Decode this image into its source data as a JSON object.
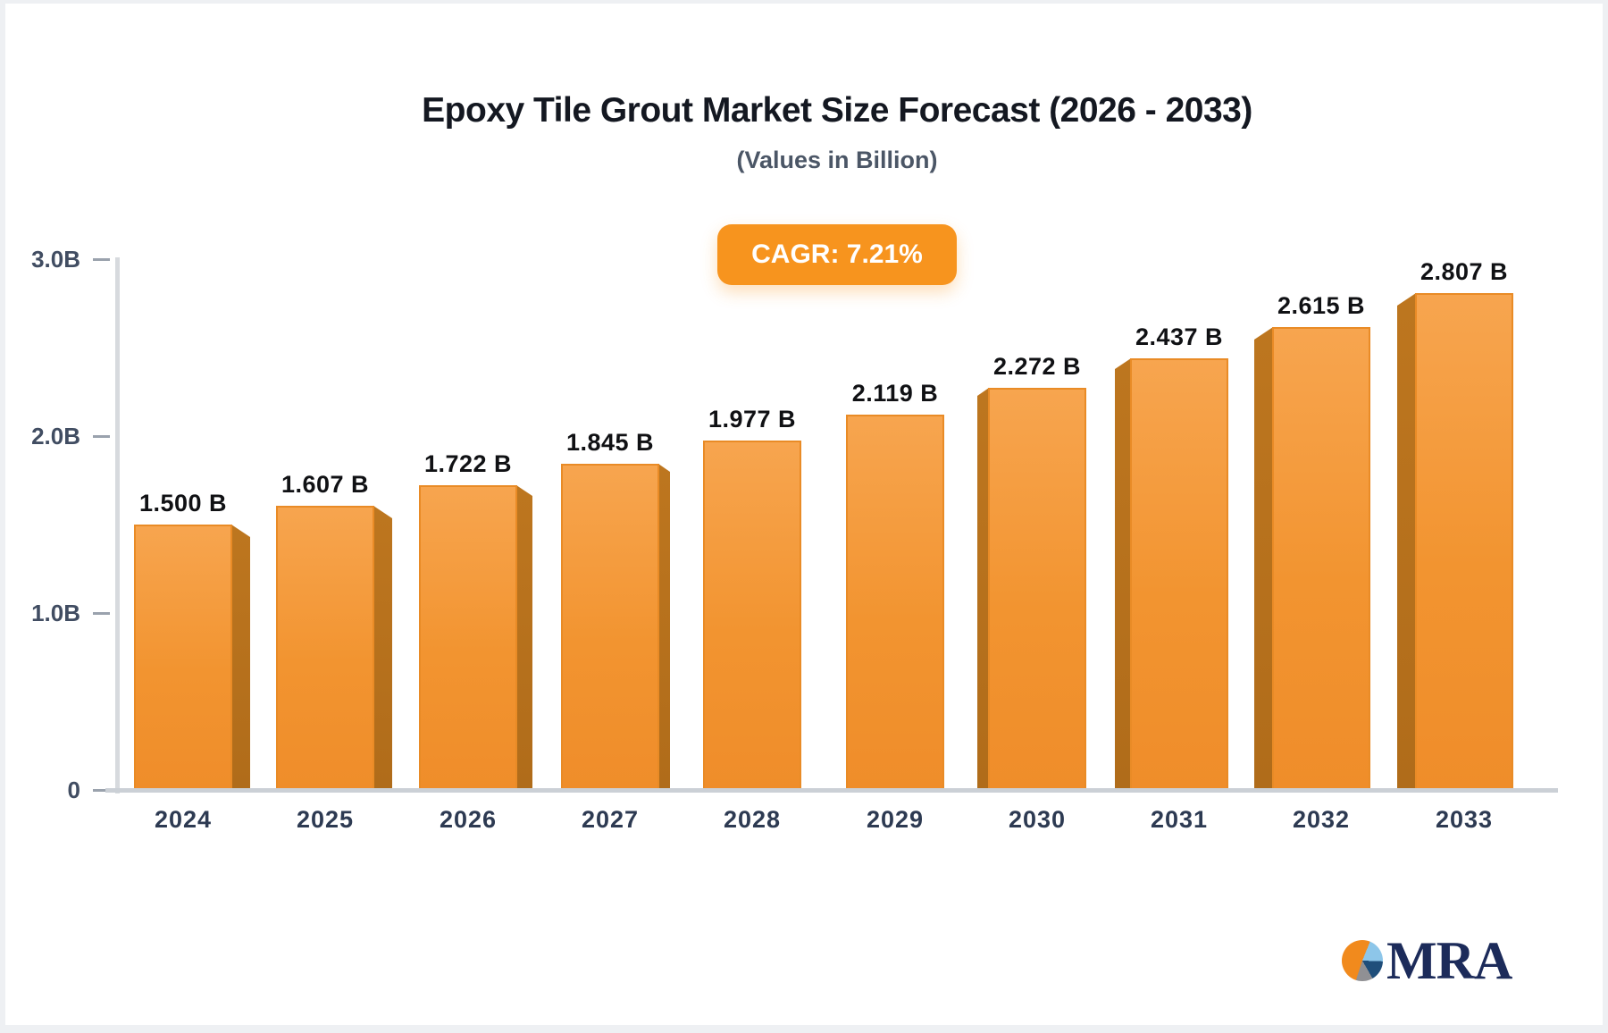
{
  "header": {
    "title": "Epoxy Tile Grout Market Size Forecast (2026 - 2033)",
    "subtitle": "(Values in Billion)"
  },
  "badge": {
    "label": "CAGR: 7.21%"
  },
  "chart_data": {
    "type": "bar",
    "title": "Epoxy Tile Grout Market Size Forecast (2026 - 2033)",
    "subtitle": "(Values in Billion)",
    "cagr": "7.21%",
    "categories": [
      "2024",
      "2025",
      "2026",
      "2027",
      "2028",
      "2029",
      "2030",
      "2031",
      "2032",
      "2033"
    ],
    "values": [
      1.5,
      1.607,
      1.722,
      1.845,
      1.977,
      2.119,
      2.272,
      2.437,
      2.615,
      2.807
    ],
    "value_labels": [
      "1.500 B",
      "1.607 B",
      "1.722 B",
      "1.845 B",
      "1.977 B",
      "2.119 B",
      "2.272 B",
      "2.437 B",
      "2.615 B",
      "2.807 B"
    ],
    "unit": "Billion",
    "xlabel": "",
    "ylabel": "",
    "ylim": [
      0,
      3.0
    ],
    "yticks": [
      {
        "label": "3.0B",
        "value": 3.0
      },
      {
        "label": "2.0B",
        "value": 2.0
      },
      {
        "label": "1.0B",
        "value": 1.0
      },
      {
        "label": "0",
        "value": 0.0
      }
    ],
    "grid": false,
    "legend": false,
    "bar_color": "#f29430",
    "bar_side_color": "#b5701d",
    "axis_color": "#cbd0d6"
  },
  "logo": {
    "text": "MRA"
  },
  "colors": {
    "accent_orange": "#f7941e",
    "title_text": "#141821",
    "subtitle_text": "#4b5666",
    "axis_label": "#2d3a52",
    "logo_navy": "#1c2b5a"
  }
}
